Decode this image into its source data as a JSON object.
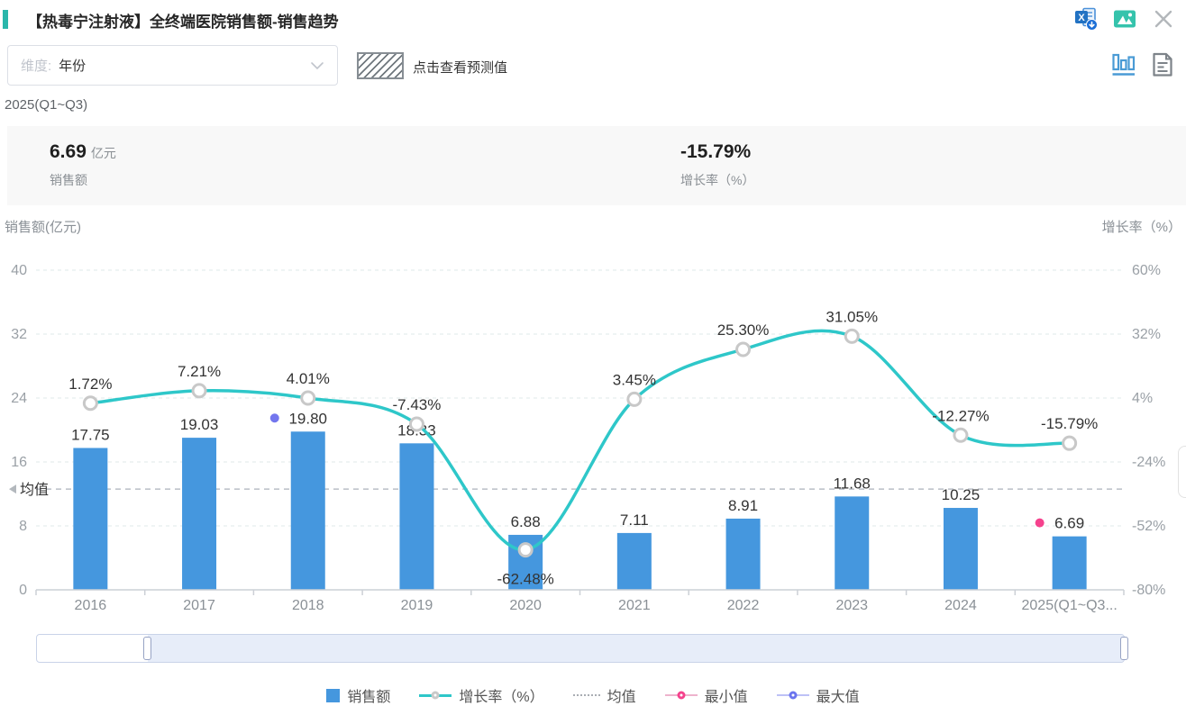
{
  "header": {
    "title": "【热毒宁注射液】全终端医院销售额-销售趋势"
  },
  "toolbar": {
    "dimension_label": "维度:",
    "dimension_value": "年份",
    "forecast_hint": "点击查看预测值"
  },
  "summary": {
    "period": "2025(Q1~Q3)",
    "sales_value": "6.69",
    "sales_unit": "亿元",
    "sales_label": "销售额",
    "growth_value": "-15.79%",
    "growth_label": "增长率（%）"
  },
  "chart_data": {
    "type": "combo-bar-line",
    "categories": [
      "2016",
      "2017",
      "2018",
      "2019",
      "2020",
      "2021",
      "2022",
      "2023",
      "2024",
      "2025(Q1~Q3..."
    ],
    "series": [
      {
        "name": "销售额",
        "type": "bar",
        "axis": "left",
        "values": [
          17.75,
          19.03,
          19.8,
          18.33,
          6.88,
          7.11,
          8.91,
          11.68,
          10.25,
          6.69
        ],
        "labels": [
          "17.75",
          "19.03",
          "19.80",
          "18.33",
          "6.88",
          "7.11",
          "8.91",
          "11.68",
          "10.25",
          "6.69"
        ]
      },
      {
        "name": "增长率（%）",
        "type": "line",
        "axis": "right",
        "values": [
          1.72,
          7.21,
          4.01,
          -7.43,
          -62.48,
          3.45,
          25.3,
          31.05,
          -12.27,
          -15.79
        ],
        "labels": [
          "1.72%",
          "7.21%",
          "4.01%",
          "-7.43%",
          "-62.48%",
          "3.45%",
          "25.30%",
          "31.05%",
          "-12.27%",
          "-15.79%"
        ],
        "label_positions": [
          "above",
          "above",
          "above",
          "above",
          "below",
          "above",
          "above",
          "above",
          "above",
          "above"
        ]
      }
    ],
    "left_axis": {
      "title": "销售额(亿元)",
      "range": [
        0,
        40
      ],
      "ticks": [
        "40",
        "32",
        "24",
        "16",
        "8",
        "0"
      ]
    },
    "right_axis": {
      "title": "增长率（%）",
      "range": [
        -80,
        60
      ],
      "ticks": [
        "60%",
        "32%",
        "4%",
        "-24%",
        "-52%",
        "-80%"
      ]
    },
    "mean_marker": {
      "label": "均值",
      "value": 12.6
    },
    "max_marker": {
      "name": "最大值",
      "index": 2
    },
    "min_marker": {
      "name": "最小值",
      "index": 9
    },
    "grid": true,
    "colors": {
      "bar": "#4597de",
      "line": "#2ec7c9",
      "point_ring": "#c8c8c8",
      "min": "#f5428d",
      "max": "#7376ee",
      "grid_line": "#dfe9e9",
      "mean_line": "#b9bfc6",
      "axis_line": "#ccd0d6",
      "tick_text": "#9aa0a6",
      "value_text": "#333333",
      "category_text": "#8a9096",
      "axis_title_text": "#8a9096"
    }
  },
  "legend": {
    "items": [
      {
        "label": "销售额"
      },
      {
        "label": "增长率（%）"
      },
      {
        "label": "均值"
      },
      {
        "label": "最小值"
      },
      {
        "label": "最大值"
      }
    ]
  },
  "icons": {
    "excel": "excel-export-icon",
    "image": "image-export-icon",
    "close": "close-icon",
    "chart_view": "bar-chart-view-icon",
    "report_view": "report-view-icon"
  },
  "colors": {
    "accent": "#2ab7ab"
  }
}
